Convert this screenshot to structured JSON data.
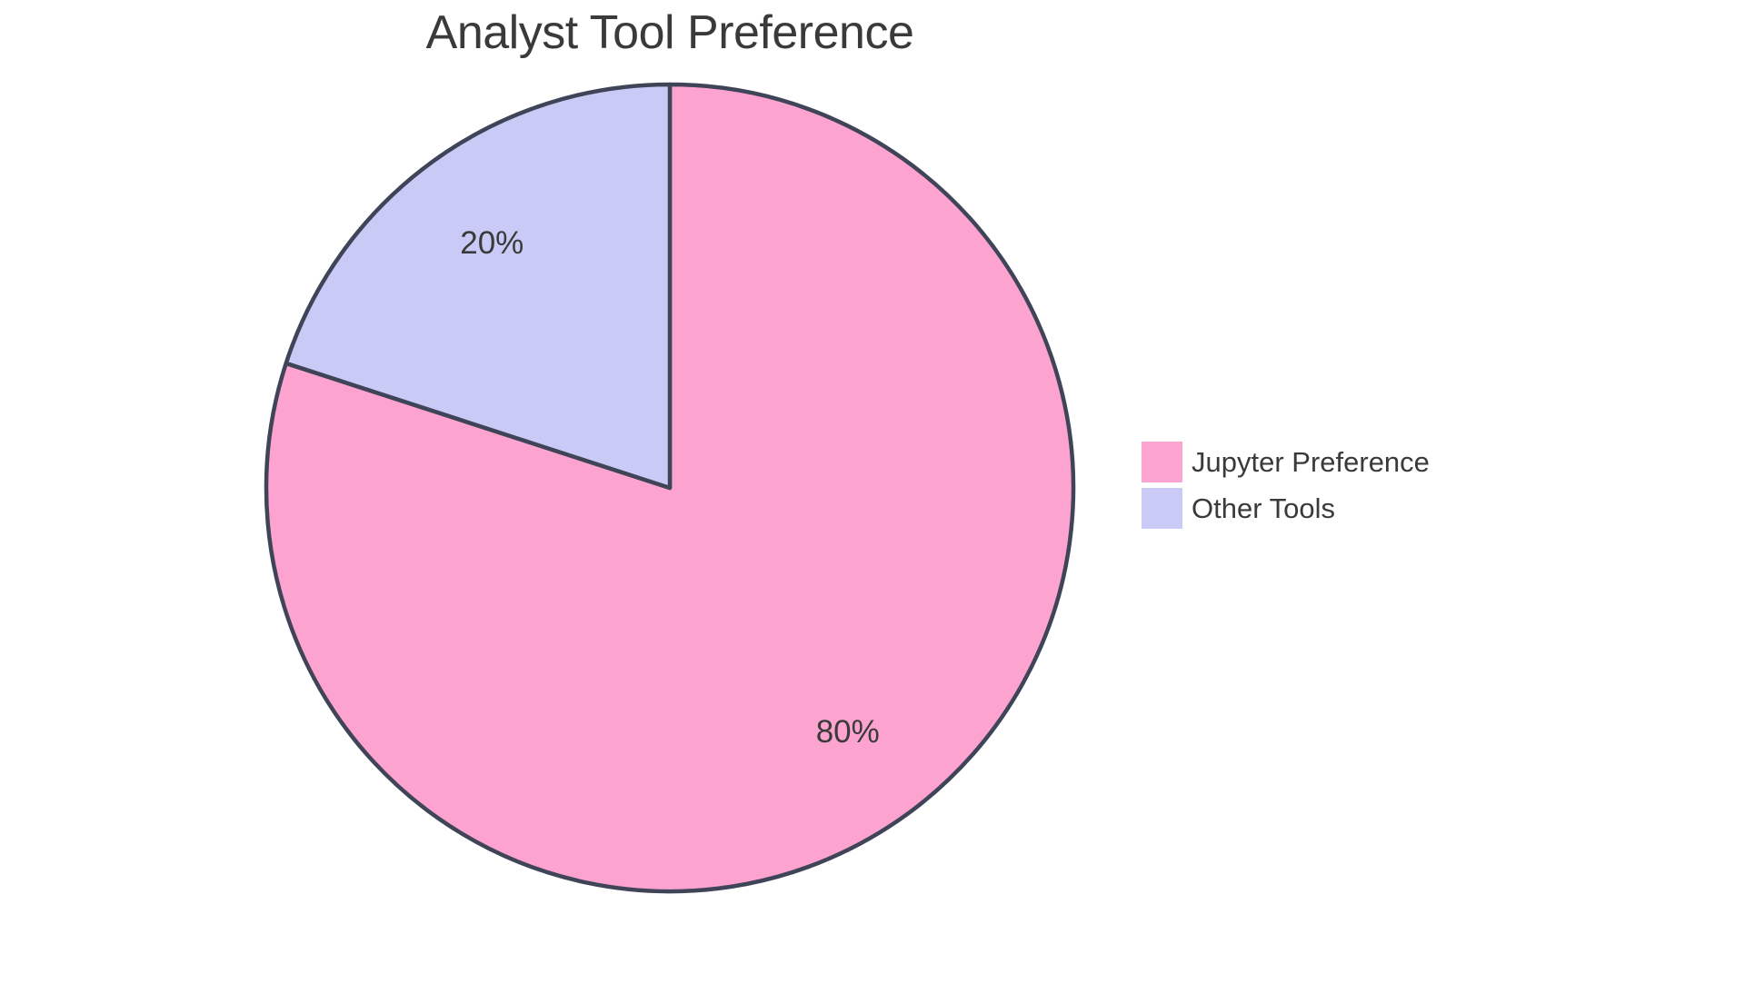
{
  "page": {
    "background_color": "#ffffff"
  },
  "chart_data": {
    "type": "pie",
    "title": "Analyst Tool Preference",
    "slices": [
      {
        "label": "Jupyter Preference",
        "value": 80,
        "percent_label": "80%",
        "color": "#FCA3CF"
      },
      {
        "label": "Other Tools",
        "value": 20,
        "percent_label": "20%",
        "color": "#C9CBF6"
      }
    ],
    "start_angle_deg": 0,
    "direction": "clockwise",
    "stroke_color": "#3F4458",
    "stroke_width": 4.5,
    "label_color": "#3A3A3A",
    "title_color": "#3A3A3A",
    "legend_position": "right",
    "grid": false
  }
}
